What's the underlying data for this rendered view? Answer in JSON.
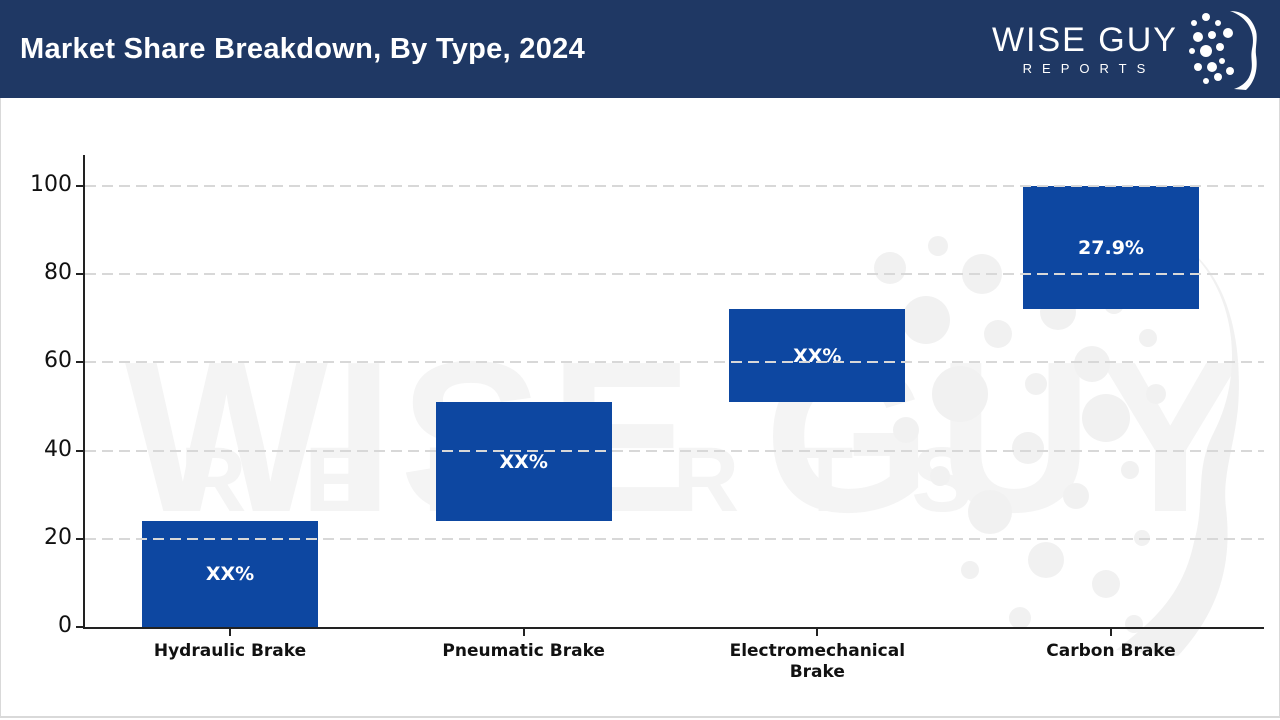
{
  "header": {
    "title": "Market Share Breakdown, By Type, 2024",
    "logo_line1": "WISE GUY",
    "logo_line2": "REPORTS",
    "bg_color": "#1f3864"
  },
  "watermark": {
    "line1": "WISE GUY",
    "line2": "REPORTS"
  },
  "chart_data": {
    "type": "bar",
    "subtype": "floating-segment-waterfall",
    "title": "Market Share Breakdown, By Type, 2024",
    "categories": [
      "Hydraulic Brake",
      "Pneumatic Brake",
      "Electromechanical Brake",
      "Carbon Brake"
    ],
    "bars": [
      {
        "category": "Hydraulic Brake",
        "start": 0,
        "end": 24,
        "label": "XX%"
      },
      {
        "category": "Pneumatic Brake",
        "start": 24,
        "end": 51,
        "label": "XX%"
      },
      {
        "category": "Electromechanical Brake",
        "start": 51,
        "end": 72.1,
        "label": "XX%"
      },
      {
        "category": "Carbon Brake",
        "start": 72.1,
        "end": 100,
        "label": "27.9%"
      }
    ],
    "yticks": [
      0,
      20,
      40,
      60,
      80,
      100
    ],
    "ylim": [
      0,
      100
    ],
    "xlabel": "",
    "ylabel": "",
    "legend": "none",
    "grid": "horizontal-dashed",
    "grid_on_top_of_bars": true,
    "bar_color": "#0d47a1",
    "bar_label_color": "#ffffff",
    "axis_color": "#222222",
    "grid_color": "#d8d8d8",
    "tick_label_color": "#111111"
  }
}
